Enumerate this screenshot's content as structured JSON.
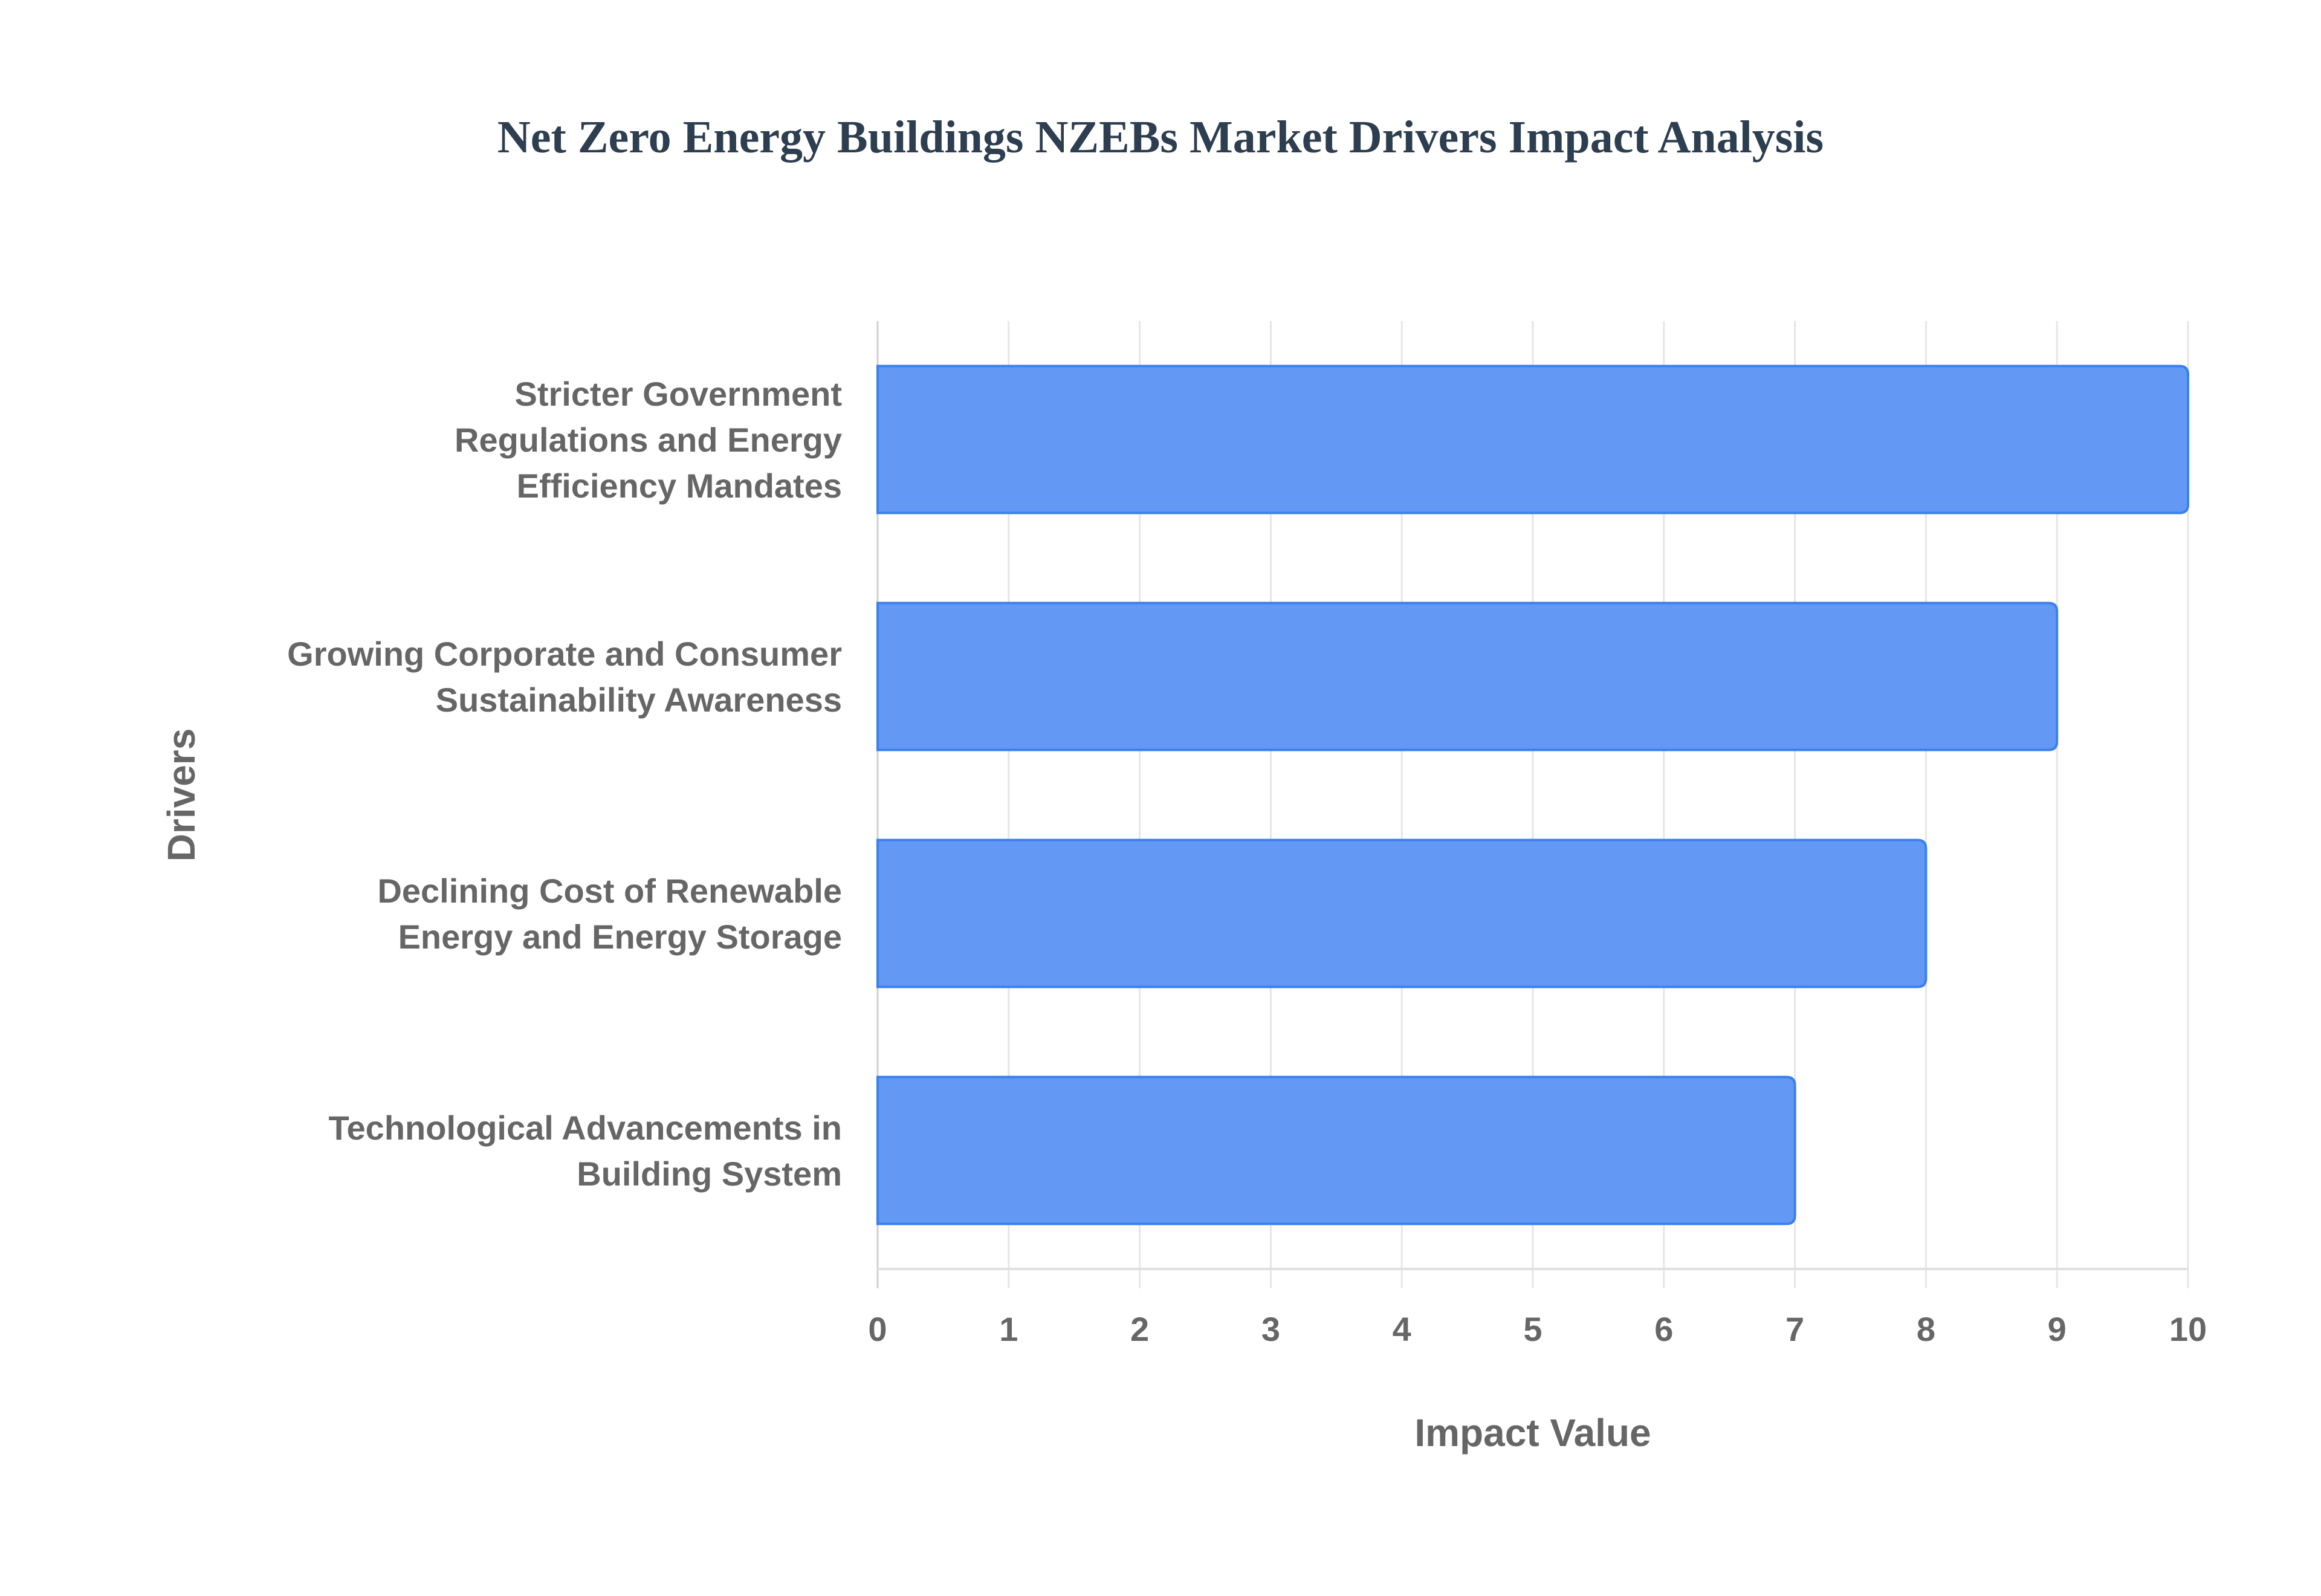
{
  "chart_data": {
    "type": "bar",
    "orientation": "horizontal",
    "title": "Net Zero Energy Buildings NZEBs Market Drivers Impact Analysis",
    "xlabel": "Impact Value",
    "ylabel": "Drivers",
    "xlim": [
      0,
      10
    ],
    "xticks": [
      "0",
      "1",
      "2",
      "3",
      "4",
      "5",
      "6",
      "7",
      "8",
      "9",
      "10"
    ],
    "grid": true,
    "categories": [
      [
        "Stricter Government",
        "Regulations and Energy",
        "Efficiency Mandates"
      ],
      [
        "Growing Corporate and Consumer",
        "Sustainability Awareness"
      ],
      [
        "Declining Cost of Renewable",
        "Energy and Energy Storage"
      ],
      [
        "Technological Advancements in",
        "Building System"
      ]
    ],
    "values": [
      10,
      9,
      8,
      7
    ],
    "bar_color": "#6399f5",
    "bar_border_color": "#3b7ff0"
  }
}
